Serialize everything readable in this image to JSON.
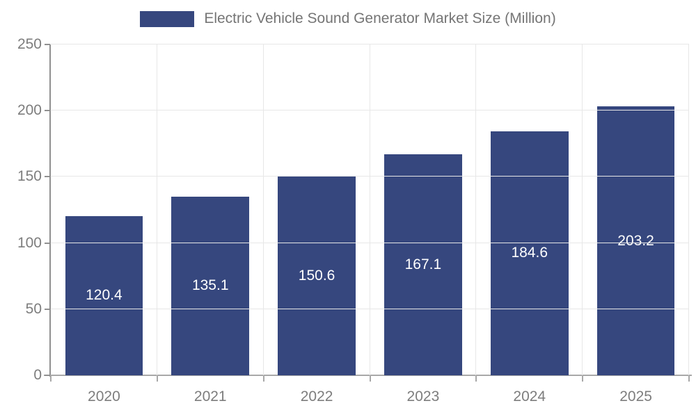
{
  "chart_data": {
    "type": "bar",
    "title": "Electric Vehicle Sound Generator Market Size (Million)",
    "categories": [
      "2020",
      "2021",
      "2022",
      "2023",
      "2024",
      "2025"
    ],
    "values": [
      120.4,
      135.1,
      150.6,
      167.1,
      184.6,
      203.2
    ],
    "series_name": "Electric Vehicle Sound Generator Market Size (Million)",
    "xlabel": "",
    "ylabel": "",
    "ylim": [
      0,
      250
    ],
    "yticks": [
      0,
      50,
      100,
      150,
      200,
      250
    ],
    "grid": true,
    "legend_position": "top",
    "bar_color": "#36477e",
    "value_label_color": "#ffffff",
    "axis_text_color": "#7d7d7d",
    "gridline_color": "#e7e7e7"
  }
}
